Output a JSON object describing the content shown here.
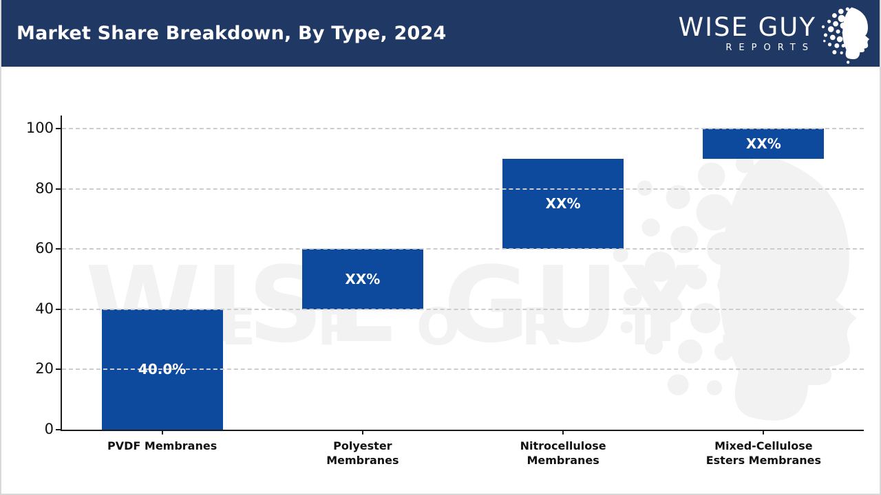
{
  "header": {
    "title": "Market Share Breakdown, By Type, 2024",
    "logo": {
      "line1": "WISE GUY",
      "line2": "REPORTS"
    }
  },
  "watermark": {
    "line1": "WISE GUY",
    "line2": "R E P O R T S"
  },
  "colors": {
    "header_navy": "#203864",
    "bar_blue": "#0D4A9E",
    "grid_gray": "#cccccc",
    "axis_black": "#1a1a1a",
    "watermark_gray": "#f2f2f2",
    "value_label_white": "#ffffff"
  },
  "chart_data": {
    "type": "bar",
    "subtype": "floating-waterfall",
    "title": "Market Share Breakdown, By Type, 2024",
    "xlabel": "",
    "ylabel": "",
    "ylim": [
      0,
      100
    ],
    "yticks": [
      0,
      20,
      40,
      60,
      80,
      100
    ],
    "grid": true,
    "grid_style": "dashed",
    "legend": "none",
    "categories": [
      "PVDF Membranes",
      "Polyester Membranes",
      "Nitrocellulose Membranes",
      "Mixed-Cellulose Esters Membranes"
    ],
    "segments": [
      {
        "category": "PVDF Membranes",
        "category_lines": [
          "PVDF Membranes"
        ],
        "start": 0,
        "end": 40,
        "value_label": "40.0%"
      },
      {
        "category": "Polyester Membranes",
        "category_lines": [
          "Polyester",
          "Membranes"
        ],
        "start": 40,
        "end": 60,
        "value_label": "XX%"
      },
      {
        "category": "Nitrocellulose Membranes",
        "category_lines": [
          "Nitrocellulose",
          "Membranes"
        ],
        "start": 60,
        "end": 90,
        "value_label": "XX%"
      },
      {
        "category": "Mixed-Cellulose Esters Membranes",
        "category_lines": [
          "Mixed-Cellulose",
          "Esters Membranes"
        ],
        "start": 90,
        "end": 100,
        "value_label": "XX%"
      }
    ]
  }
}
